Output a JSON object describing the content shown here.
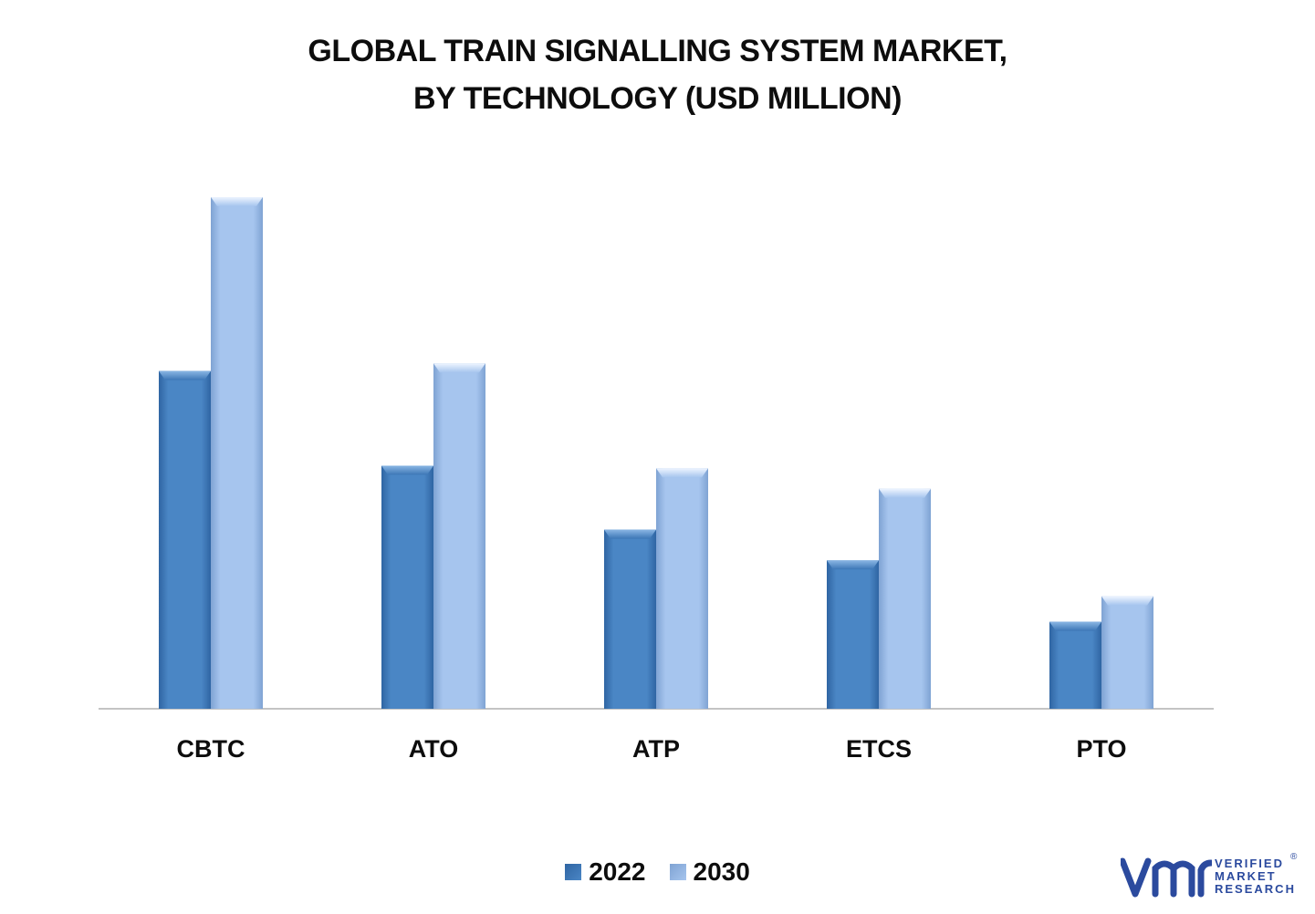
{
  "title_line1": "GLOBAL TRAIN SIGNALLING SYSTEM MARKET,",
  "title_line2": "BY TECHNOLOGY (USD MILLION)",
  "colors": {
    "series_2022": "#4a86c5",
    "series_2030": "#a6c5ee",
    "axis": "#b0b0b0",
    "logo": "#2b4a9e"
  },
  "chart_data": {
    "type": "bar",
    "categories": [
      "CBTC",
      "ATO",
      "ATP",
      "ETCS",
      "PTO"
    ],
    "series": [
      {
        "name": "2022",
        "values": [
          6.6,
          4.75,
          3.5,
          2.9,
          1.7
        ]
      },
      {
        "name": "2030",
        "values": [
          10.0,
          6.75,
          4.7,
          4.3,
          2.2
        ]
      }
    ],
    "ylim": [
      0,
      10
    ],
    "grid": false,
    "legend_position": "bottom"
  },
  "logo": {
    "mark": "vmr",
    "line1": "VERIFIED",
    "line2": "MARKET",
    "line3": "RESEARCH",
    "registered": "®"
  }
}
